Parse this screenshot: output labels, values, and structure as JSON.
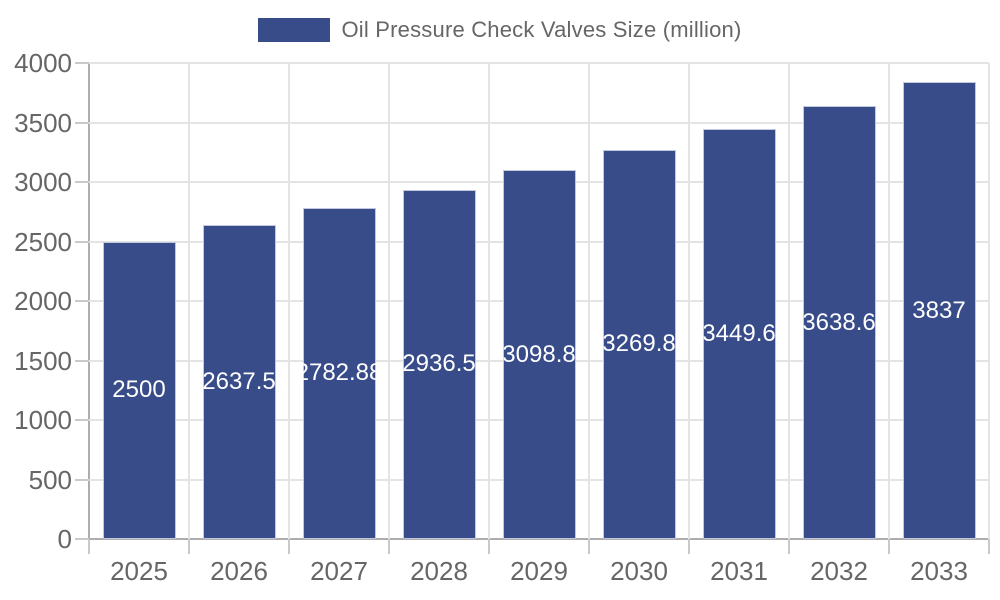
{
  "legend": {
    "label": "Oil Pressure Check Valves Size (million)"
  },
  "chart_data": {
    "type": "bar",
    "title": "Oil Pressure Check Valves Size (million)",
    "series_name": "Oil Pressure Check Valves Size (million)",
    "categories": [
      "2025",
      "2026",
      "2027",
      "2028",
      "2029",
      "2030",
      "2031",
      "2032",
      "2033"
    ],
    "values": [
      2500,
      2637.5,
      2782.88,
      2936.5,
      3098.8,
      3269.8,
      3449.6,
      3638.6,
      3837
    ],
    "value_labels": [
      "2500",
      "2637.5",
      "2782.88",
      "2936.5",
      "3098.8",
      "3269.8",
      "3449.6",
      "3638.6",
      "3837"
    ],
    "xlabel": "",
    "ylabel": "",
    "ylim": [
      0,
      4000
    ],
    "ytick_step": 500,
    "yticks": [
      "0",
      "500",
      "1000",
      "1500",
      "2000",
      "2500",
      "3000",
      "3500",
      "4000"
    ],
    "grid": true,
    "legend_position": "top",
    "colors": {
      "bar": "#384C8A",
      "value_text": "#FFFFFF",
      "axis_text": "#666666",
      "gridline": "#E4E4E4",
      "axis_line": "#ADADAD",
      "tick": "#C9C9C9",
      "background": "#FFFFFF"
    }
  }
}
